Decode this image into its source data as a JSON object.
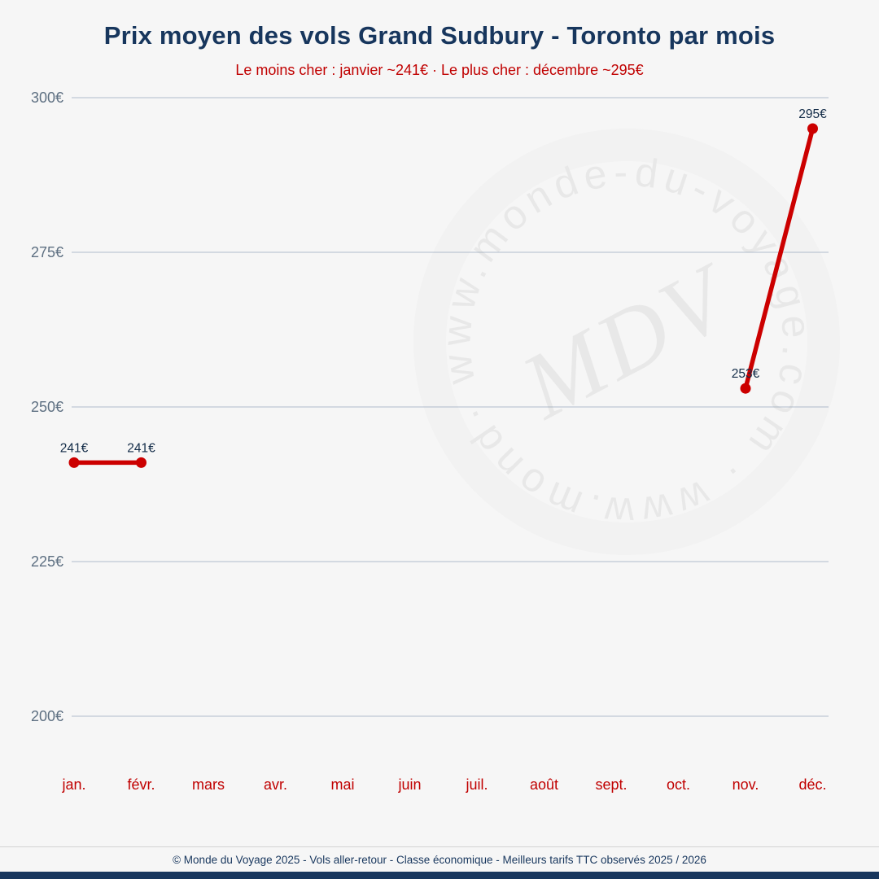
{
  "header": {
    "title": "Prix moyen des vols Grand Sudbury - Toronto par mois",
    "subtitle": "Le moins cher : janvier ~241€ · Le plus cher : décembre ~295€"
  },
  "chart_data": {
    "type": "line",
    "title": "Prix moyen des vols Grand Sudbury - Toronto par mois",
    "categories": [
      "jan.",
      "févr.",
      "mars",
      "avr.",
      "mai",
      "juin",
      "juil.",
      "août",
      "sept.",
      "oct.",
      "nov.",
      "déc."
    ],
    "values": [
      241,
      241,
      null,
      null,
      null,
      null,
      null,
      null,
      null,
      null,
      253,
      295
    ],
    "point_labels": [
      "241€",
      "241€",
      null,
      null,
      null,
      null,
      null,
      null,
      null,
      null,
      "253€",
      "295€"
    ],
    "y_ticks": [
      200,
      225,
      250,
      275,
      300
    ],
    "y_tick_labels": [
      "200€",
      "225€",
      "250€",
      "275€",
      "300€"
    ],
    "ylim": [
      200,
      300
    ],
    "xlabel": "",
    "ylabel": "",
    "grid": true,
    "legend": "none",
    "currency": "€"
  },
  "watermark": {
    "arc_text": "www.monde-du-voyage.com",
    "center_text": "MDV"
  },
  "footer": {
    "text": "© Monde du Voyage 2025 - Vols aller-retour - Classe économique - Meilleurs tarifs TTC observés 2025 / 2026"
  },
  "colors": {
    "title": "#17365d",
    "subtitle": "#c00000",
    "line": "#cc0000",
    "grid": "#c7cfda",
    "tick_label": "#5e7082",
    "month_label": "#c00000",
    "point_label": "#122b47",
    "watermark": "#9a9a9a",
    "footer": "#17365d",
    "background": "#f6f6f6"
  }
}
